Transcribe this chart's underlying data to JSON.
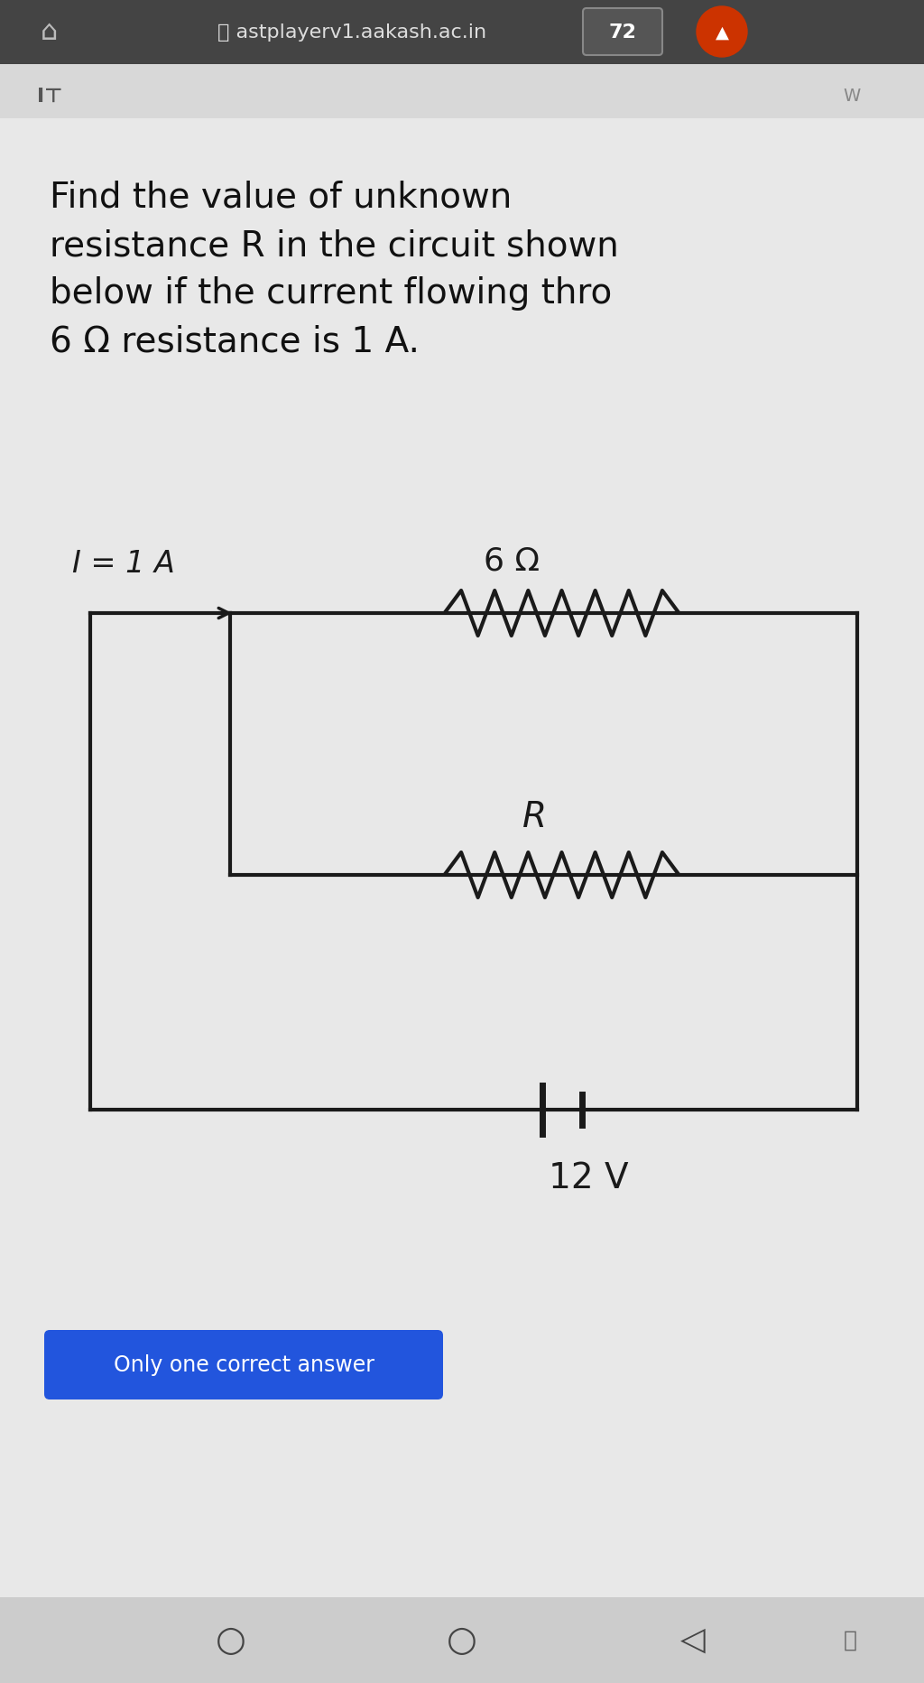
{
  "bg_color": "#2a2a2a",
  "card_color": "#e8e8e8",
  "card_bg": "#f0f0f0",
  "title_text": "Find the value of unknown\nresistance R in the circuit shown\nbelow if the current flowing thro\n6 Ω resistance is 1 A.",
  "title_fontsize": 28,
  "title_color": "#111111",
  "url_text": "astplayerv1.aakash.ac.in",
  "topbar_color": "#444444",
  "badge_text": "72",
  "circuit_line_color": "#1a1a1a",
  "circuit_lw": 3.0,
  "resistor_6_label": "6 Ω",
  "resistor_R_label": "R",
  "battery_label": "12 V",
  "current_label": "I = 1 A",
  "button_text": "Only one correct answer",
  "button_color": "#2255dd",
  "button_text_color": "#ffffff",
  "nav_color": "#cccccc"
}
